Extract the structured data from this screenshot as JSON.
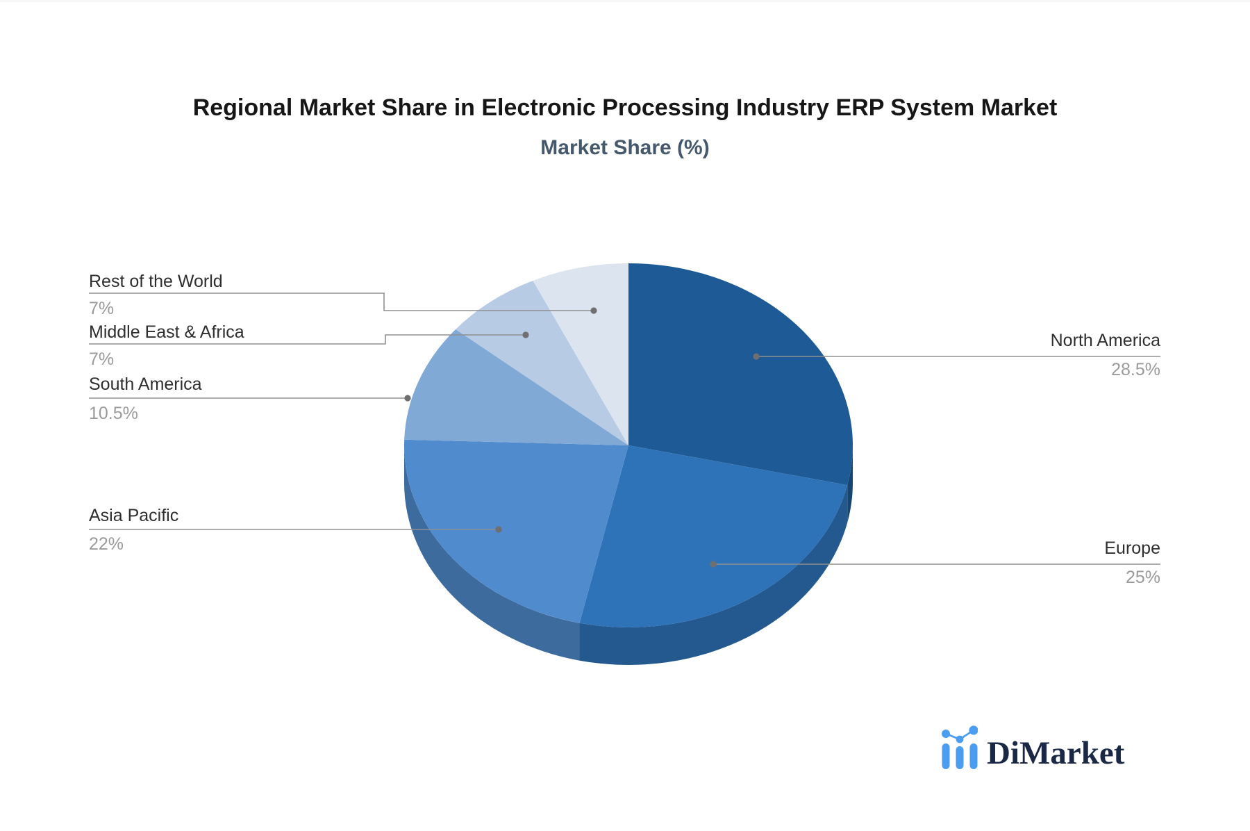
{
  "title": "Regional Market Share in Electronic Processing Industry ERP System Market",
  "subtitle": "Market Share (%)",
  "brand": {
    "name": "DiMarket",
    "icon": "bar-line-chart-icon",
    "icon_color": "#4a9df1",
    "text_color": "#1a2845"
  },
  "style_colors": {
    "label_text": "#2e2e2e",
    "value_text": "#9a9a9a",
    "leader_line": "#8f8f8f",
    "leader_dot": "#6f6f6f"
  },
  "chart_data": {
    "type": "pie",
    "style": "3d",
    "title": "Regional Market Share in Electronic Processing Industry ERP System Market",
    "subtitle": "Market Share (%)",
    "unit": "%",
    "start_angle_deg": 0,
    "direction": "clockwise",
    "legend_position": "callout-labels",
    "slices": [
      {
        "label": "North America",
        "value": 28.5,
        "display": "28.5%",
        "color": "#1d5a96"
      },
      {
        "label": "Europe",
        "value": 25,
        "display": "25%",
        "color": "#2e73b8"
      },
      {
        "label": "Asia Pacific",
        "value": 22,
        "display": "22%",
        "color": "#4f8bcd"
      },
      {
        "label": "South America",
        "value": 10.5,
        "display": "10.5%",
        "color": "#80a9d6"
      },
      {
        "label": "Middle East & Africa",
        "value": 7,
        "display": "7%",
        "color": "#b7cbe4"
      },
      {
        "label": "Rest of the World",
        "value": 7,
        "display": "7%",
        "color": "#dce4f0"
      }
    ]
  }
}
